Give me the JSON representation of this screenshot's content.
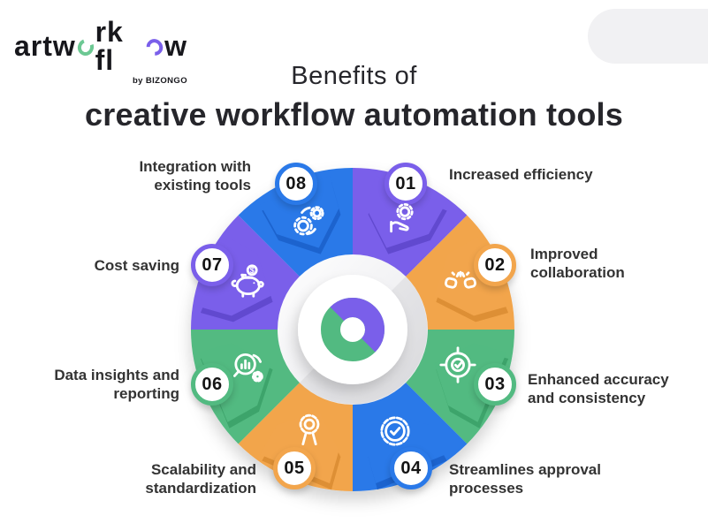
{
  "brand": {
    "wordmark_part1": "artw",
    "wordmark_part2": "rk fl",
    "wordmark_part3": "w",
    "byline": "by BIZONGO"
  },
  "title": {
    "line1": "Benefits of",
    "line2": "creative workflow automation tools"
  },
  "wheel": {
    "center": {
      "ring_purple": "#7A5FEA",
      "ring_green": "#52BA81"
    },
    "segments": [
      {
        "number": "01",
        "label": "Increased efficiency",
        "icon": "hand-gear-icon",
        "color": "#7A5FEA",
        "dark": "#6149CF"
      },
      {
        "number": "02",
        "label": "Improved\ncollaboration",
        "icon": "fist-bump-icon",
        "color": "#F2A54C",
        "dark": "#DD8F35"
      },
      {
        "number": "03",
        "label": "Enhanced accuracy\nand consistency",
        "icon": "target-check-icon",
        "color": "#52BA81",
        "dark": "#3DA46B"
      },
      {
        "number": "04",
        "label": "Streamlines approval\nprocesses",
        "icon": "seal-check-icon",
        "color": "#2A79E8",
        "dark": "#1C63CE"
      },
      {
        "number": "05",
        "label": "Scalability and\nstandardization",
        "icon": "medal-icon",
        "color": "#F2A54C",
        "dark": "#DD8F35"
      },
      {
        "number": "06",
        "label": "Data insights and\nreporting",
        "icon": "magnifier-chart-icon",
        "color": "#52BA81",
        "dark": "#3DA46B"
      },
      {
        "number": "07",
        "label": "Cost saving",
        "icon": "piggy-bank-icon",
        "color": "#7A5FEA",
        "dark": "#6149CF"
      },
      {
        "number": "08",
        "label": "Integration with\nexisting tools",
        "icon": "gears-icon",
        "color": "#2A79E8",
        "dark": "#1C63CE"
      }
    ]
  }
}
